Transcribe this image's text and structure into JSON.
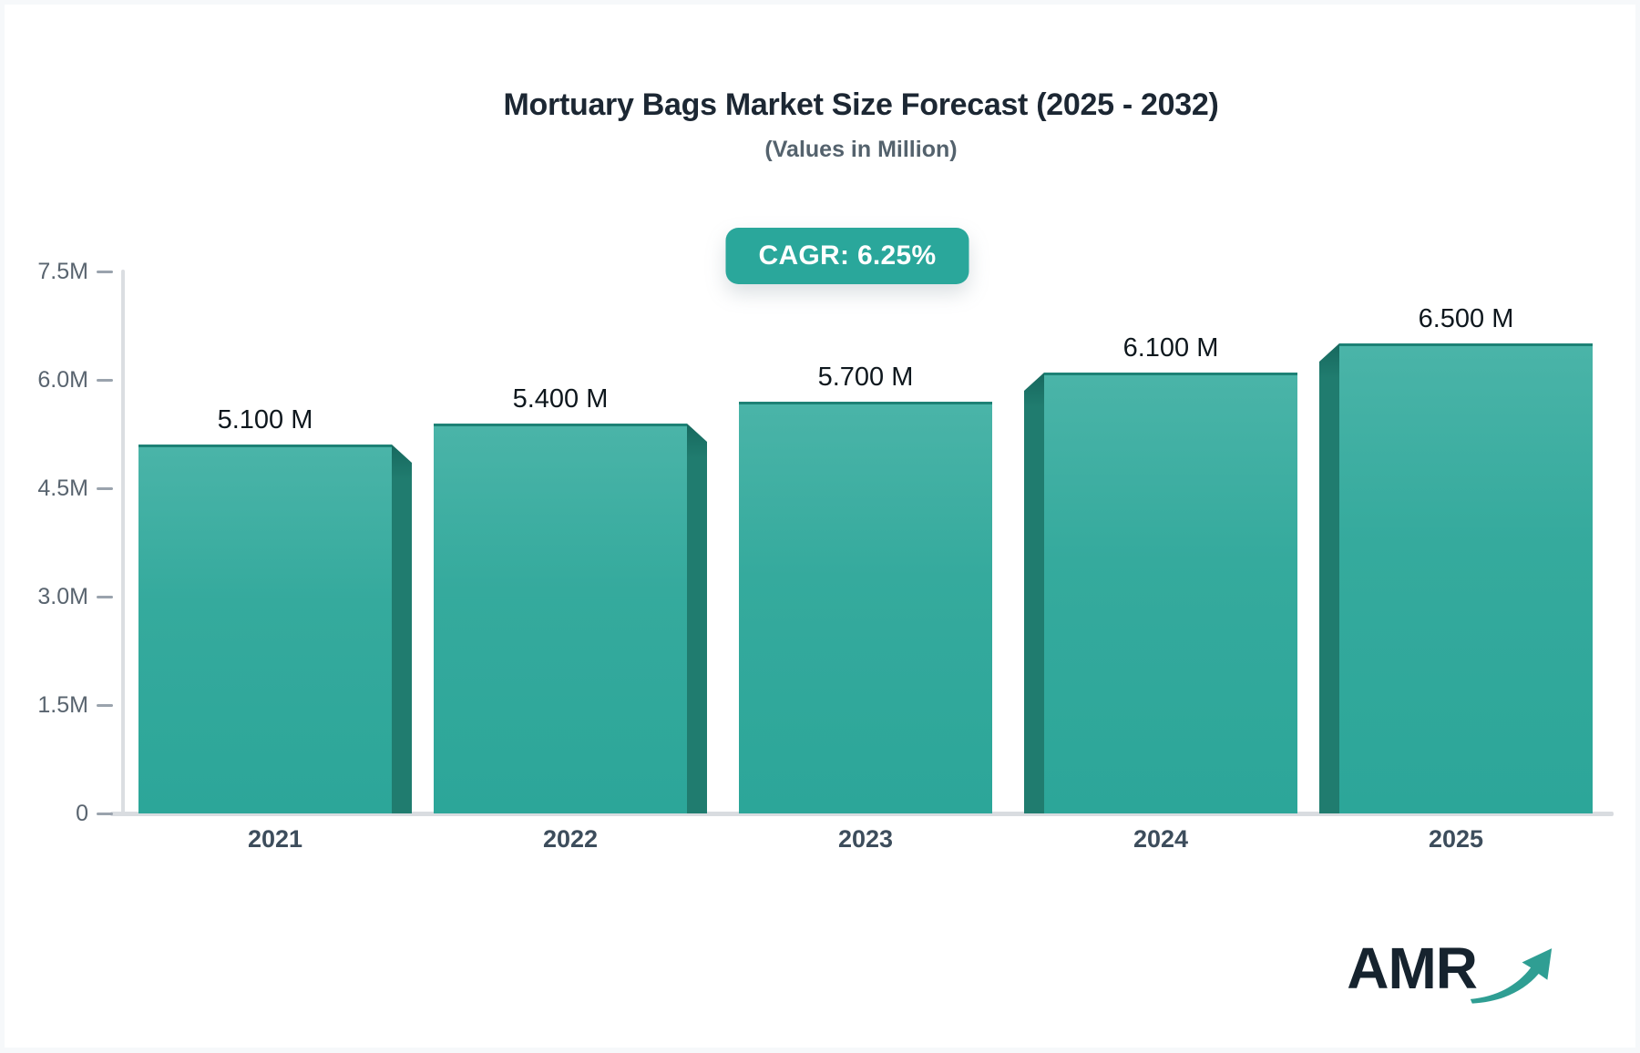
{
  "page": {
    "background_color": "#f6f8fa",
    "card_color": "#ffffff"
  },
  "header": {
    "title": "Mortuary Bags Market Size Forecast (2025 - 2032)",
    "subtitle": "(Values in Million)"
  },
  "cagr_badge": {
    "label": "CAGR: 6.25%",
    "background_color": "#2aa79b",
    "text_color": "#ffffff"
  },
  "chart_data": {
    "type": "bar",
    "title": "Mortuary Bags Market Size Forecast (2025 - 2032)",
    "subtitle": "(Values in Million)",
    "unit": "Million",
    "categories": [
      "2021",
      "2022",
      "2023",
      "2024",
      "2025"
    ],
    "values": [
      5.1,
      5.4,
      5.7,
      6.1,
      6.5
    ],
    "value_labels": [
      "5.100 M",
      "5.400 M",
      "5.700 M",
      "6.100 M",
      "6.500 M"
    ],
    "cagr_percent": 6.25,
    "ylim": [
      0,
      7.5
    ],
    "y_ticks": [
      {
        "label": "7.5M",
        "value": 7.5
      },
      {
        "label": "6.0M",
        "value": 6.0
      },
      {
        "label": "4.5M",
        "value": 4.5
      },
      {
        "label": "3.0M",
        "value": 3.0
      },
      {
        "label": "1.5M",
        "value": 1.5
      },
      {
        "label": "0",
        "value": 0
      }
    ],
    "grid": false,
    "legend": false,
    "bar_3d_sides": [
      "right",
      "right",
      "none",
      "left",
      "left"
    ],
    "colors": {
      "bar_top": "#4ab4a8",
      "bar_bottom": "#2ca699",
      "bar_edge": "#1d8175",
      "bar_side": "#207c6f",
      "bar_side_bevel": "#17685e",
      "axis_line": "#d9dce0",
      "tick_dash": "#9aa3ad",
      "y_label_color": "#59646f",
      "x_label_color": "#3d4d5c",
      "value_label_color": "#0e171d"
    }
  },
  "logo": {
    "text": "AMR",
    "text_color": "#16232e",
    "arrow_color": "#2f9e93"
  }
}
